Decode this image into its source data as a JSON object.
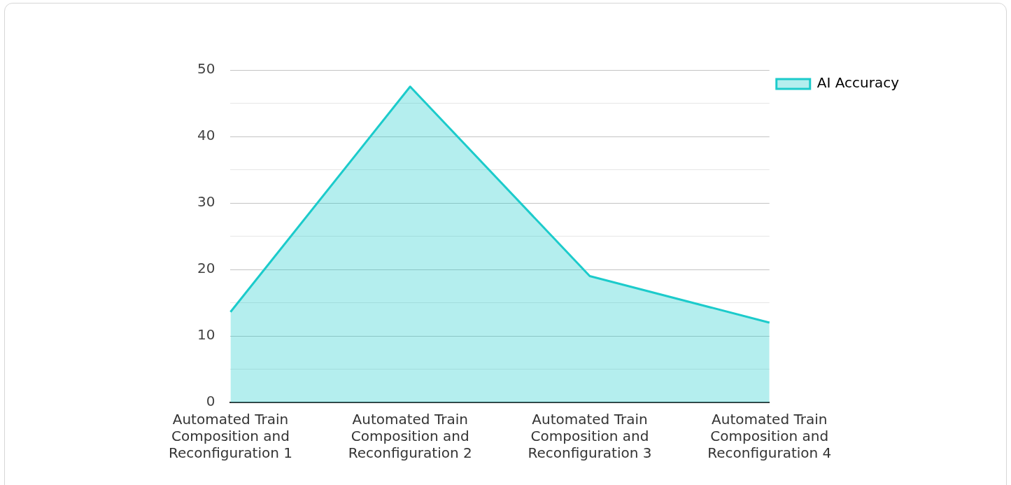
{
  "chart_data": {
    "type": "area",
    "categories": [
      "Automated Train Composition and Reconfiguration 1",
      "Automated Train Composition and Reconfiguration 2",
      "Automated Train Composition and Reconfiguration 3",
      "Automated Train Composition and Reconfiguration 4"
    ],
    "series": [
      {
        "name": "AI Accuracy",
        "color": "#1ccbcb",
        "values": [
          13.6,
          47.5,
          19,
          12
        ]
      }
    ],
    "ylim": [
      0,
      50
    ],
    "yticks": [
      0,
      {
        "value": 5,
        "label": null
      },
      10,
      {
        "value": 15,
        "label": null
      },
      20,
      {
        "value": 25,
        "label": null
      },
      30,
      {
        "value": 35,
        "label": null
      },
      40,
      {
        "value": 45,
        "label": null
      },
      50
    ],
    "grid": "y",
    "legend": "top right",
    "marker": "none"
  }
}
